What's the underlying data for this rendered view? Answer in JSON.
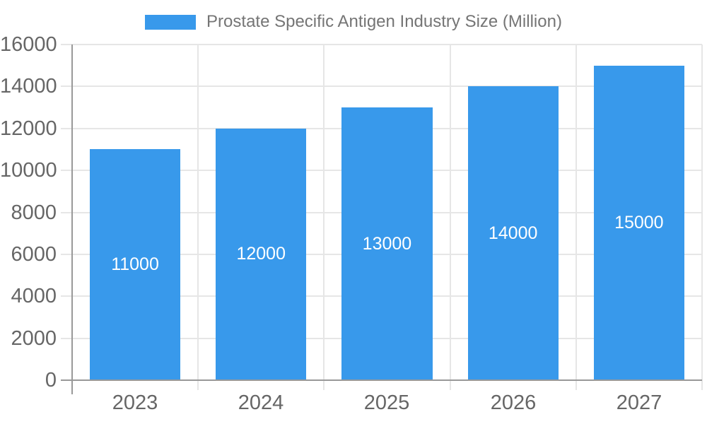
{
  "legend": {
    "label": "Prostate Specific Antigen Industry Size (Million)"
  },
  "chart_data": {
    "type": "bar",
    "title": "Prostate Specific Antigen Industry Size (Million)",
    "categories": [
      "2023",
      "2024",
      "2025",
      "2026",
      "2027"
    ],
    "series": [
      {
        "name": "Prostate Specific Antigen Industry Size (Million)",
        "values": [
          11000,
          12000,
          13000,
          14000,
          15000
        ]
      }
    ],
    "bar_labels": [
      "11000",
      "12000",
      "13000",
      "14000",
      "15000"
    ],
    "xlabel": "",
    "ylabel": "",
    "ylim": [
      0,
      16000
    ],
    "ytick_step": 2000,
    "ytick_labels": [
      "0",
      "2000",
      "4000",
      "6000",
      "8000",
      "10000",
      "12000",
      "14000",
      "16000"
    ],
    "grid": true,
    "legend_position": "top",
    "colors": {
      "bar": "#3899EB",
      "grid": "#E6E6E6",
      "axis": "#999999",
      "tick_label": "#666666",
      "legend_label": "#757575",
      "bar_label": "#FFFFFF",
      "background": "#FFFFFF"
    }
  }
}
